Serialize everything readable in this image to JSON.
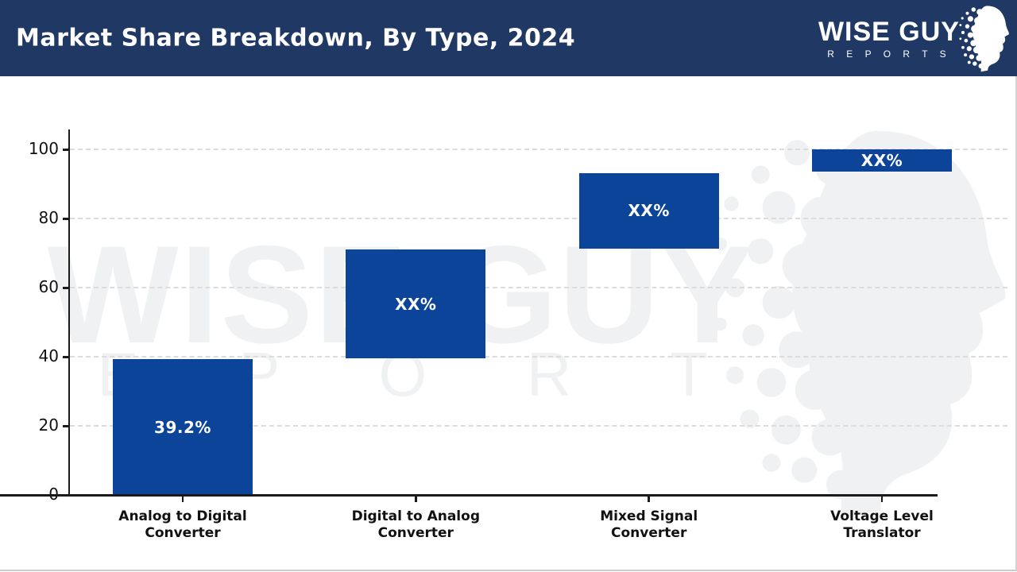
{
  "header": {
    "title": "Market Share Breakdown, By Type, 2024",
    "logo": {
      "name": "WISE GUY",
      "subname": "R E P O R T S"
    }
  },
  "watermark": {
    "line1": "WISE GUY",
    "line2": "R E P O R T S"
  },
  "chart_data": {
    "type": "bar",
    "variant": "floating-waterfall",
    "title": "Market Share Breakdown, By Type, 2024",
    "categories": [
      {
        "label": "Analog to Digital Converter",
        "lines": [
          "Analog to Digital",
          "Converter"
        ]
      },
      {
        "label": "Digital to Analog Converter",
        "lines": [
          "Digital to Analog",
          "Converter"
        ]
      },
      {
        "label": "Mixed Signal Converter",
        "lines": [
          "Mixed Signal",
          "Converter"
        ]
      },
      {
        "label": "Voltage Level Translator",
        "lines": [
          "Voltage Level",
          "Translator"
        ]
      }
    ],
    "bars": [
      {
        "start": 0,
        "end": 39.2,
        "label": "39.2%"
      },
      {
        "start": 39.5,
        "end": 71.0,
        "label": "XX%"
      },
      {
        "start": 71.3,
        "end": 93.2,
        "label": "XX%"
      },
      {
        "start": 93.5,
        "end": 100.0,
        "label": "XX%"
      }
    ],
    "xlabel": "",
    "ylabel": "",
    "ylim": [
      0,
      100
    ],
    "yticks": [
      0,
      20,
      40,
      60,
      80,
      100
    ],
    "grid": {
      "horizontal": true,
      "style": "dashed"
    },
    "legend": "none",
    "colors": {
      "bar": "#0b4499",
      "bar_label": "#ffffff",
      "axis": "#1a1a1a",
      "gridline": "#dcdcdc",
      "tick_label": "#111111",
      "header_bg": "#1f3864",
      "watermark": "#f0f1f2"
    }
  }
}
